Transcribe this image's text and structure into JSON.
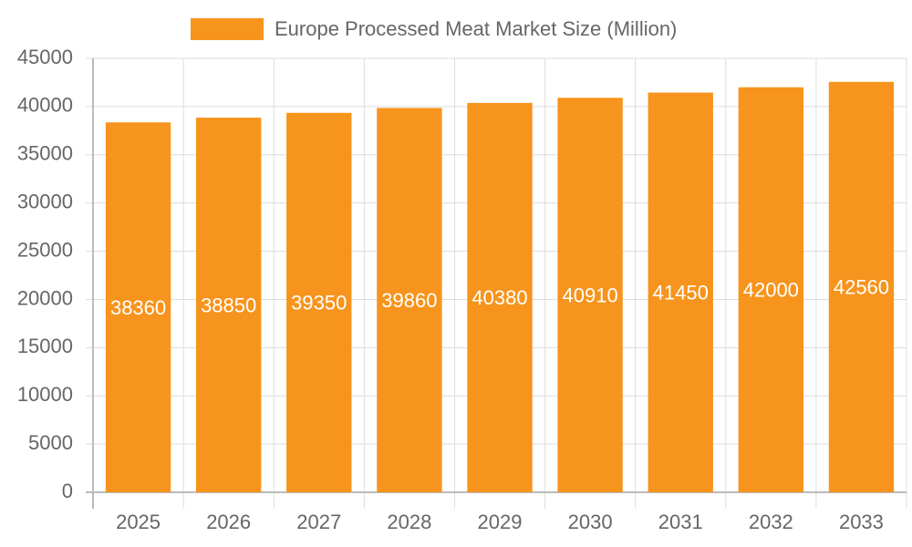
{
  "chart_data": {
    "type": "bar",
    "categories": [
      "2025",
      "2026",
      "2027",
      "2028",
      "2029",
      "2030",
      "2031",
      "2032",
      "2033"
    ],
    "series": [
      {
        "name": "Europe Processed Meat Market Size (Million)",
        "color": "#f7941d",
        "values": [
          38360,
          38850,
          39350,
          39860,
          40380,
          40910,
          41450,
          42000,
          42560
        ]
      }
    ],
    "ylim": [
      0,
      45000
    ],
    "yticks": [
      0,
      5000,
      10000,
      15000,
      20000,
      25000,
      30000,
      35000,
      40000,
      45000
    ],
    "grid": true,
    "legend": "top"
  }
}
